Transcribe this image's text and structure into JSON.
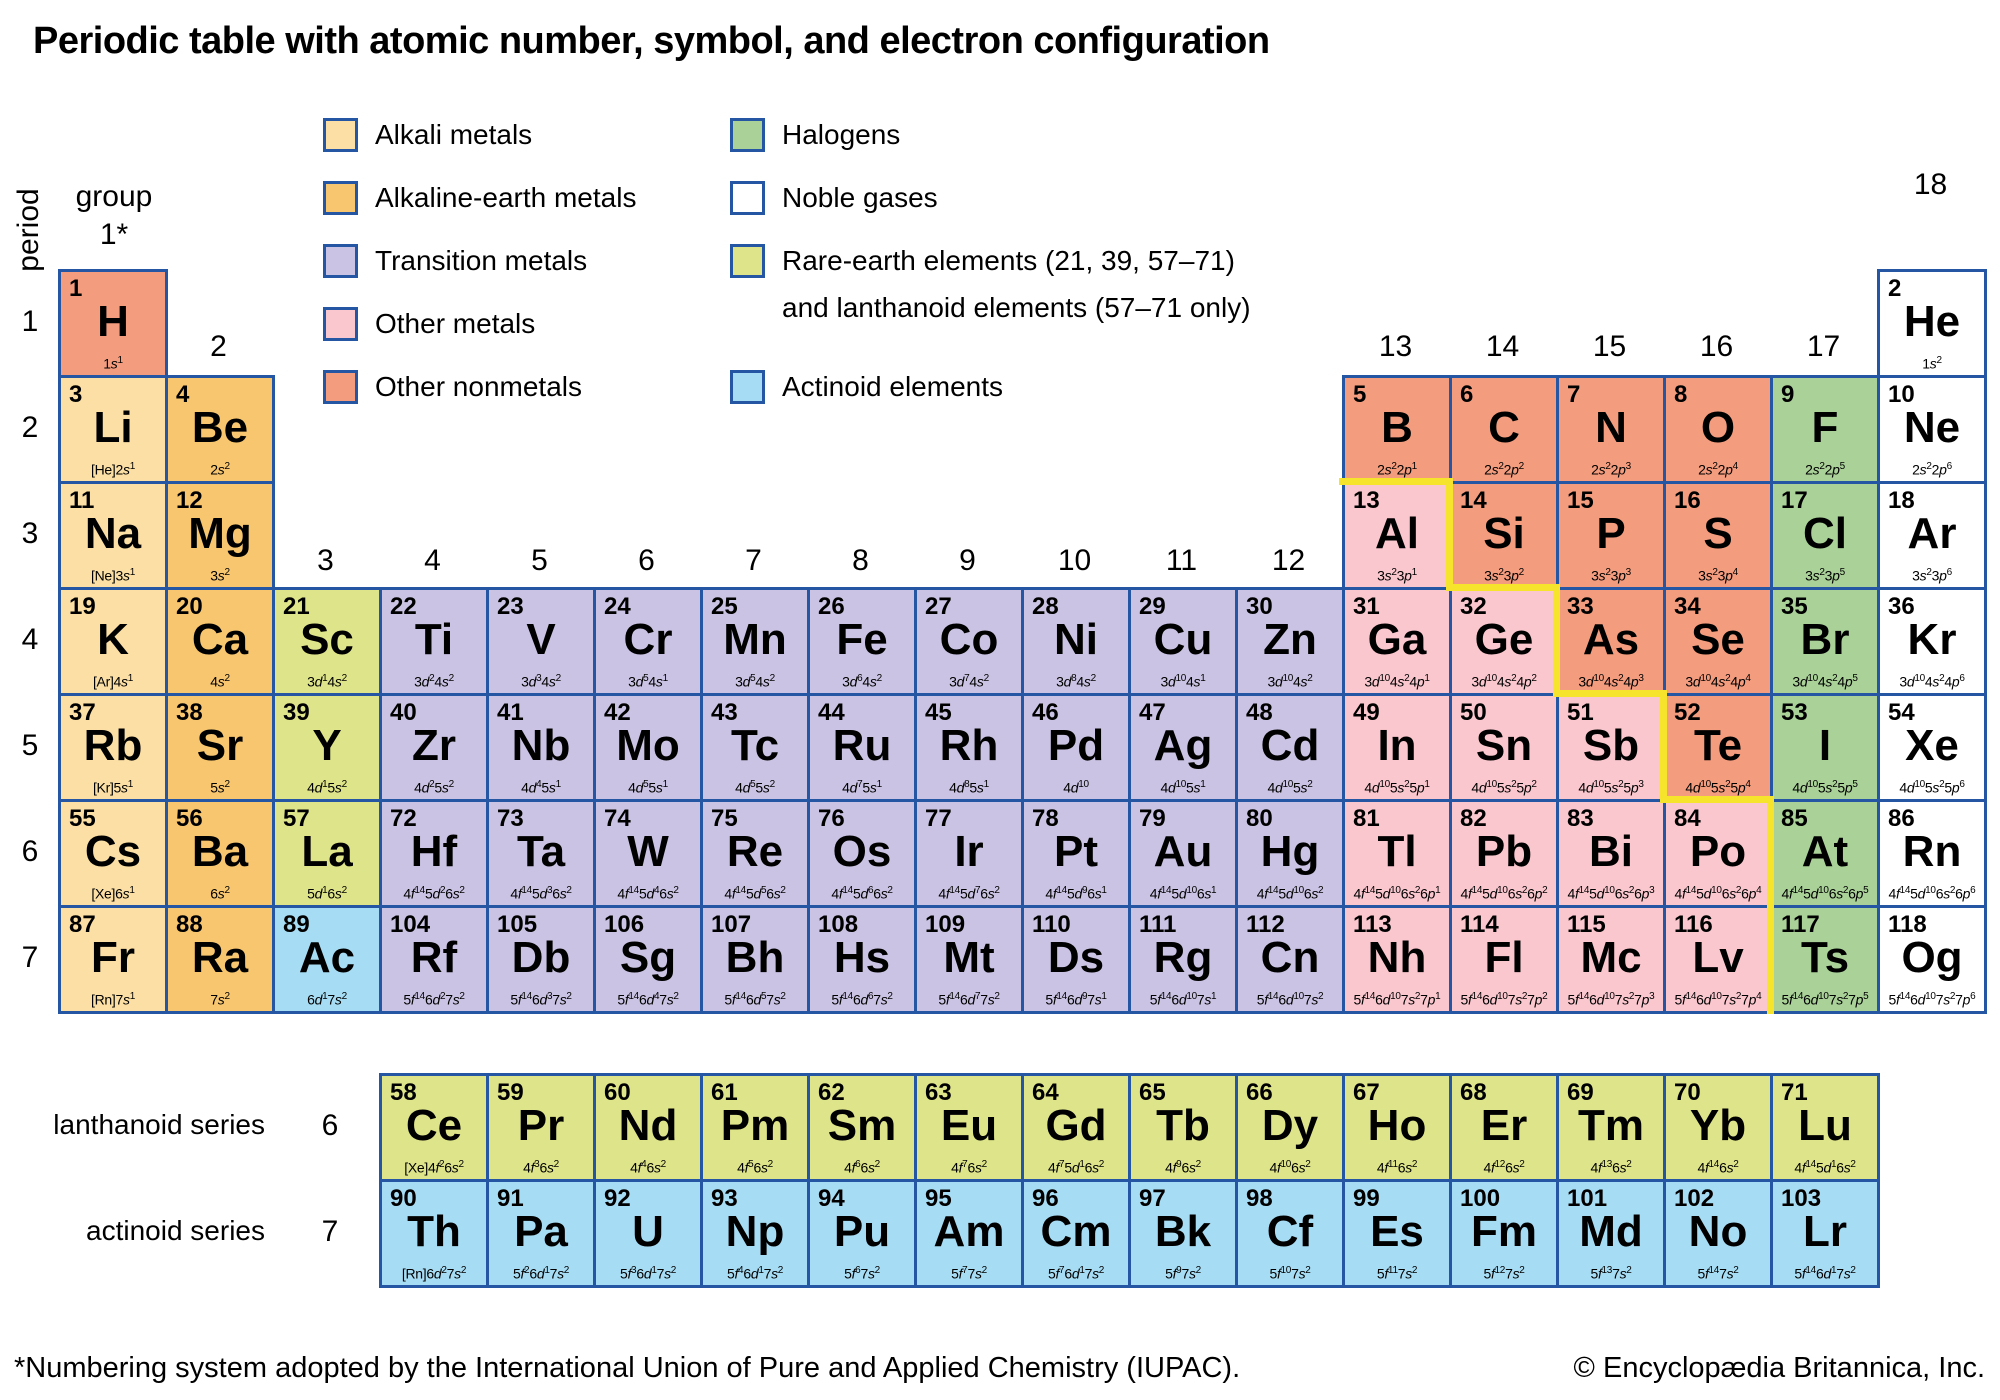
{
  "title": "Periodic table with atomic number, symbol, and electron configuration",
  "legend": {
    "left": [
      {
        "label": "Alkali metals",
        "cat": "alk"
      },
      {
        "label": "Alkaline-earth metals",
        "cat": "ae"
      },
      {
        "label": "Transition metals",
        "cat": "tm"
      },
      {
        "label": "Other metals",
        "cat": "om"
      },
      {
        "label": "Other nonmetals",
        "cat": "nm"
      }
    ],
    "right": [
      {
        "label": "Halogens",
        "cat": "hal"
      },
      {
        "label": "Noble gases",
        "cat": "ng"
      },
      {
        "label": "Rare-earth elements (21, 39, 57–71)",
        "cat": "re"
      },
      {
        "label": "and lanthanoid elements (57–71 only)",
        "cat": null
      },
      {
        "label": "Actinoid elements",
        "cat": "act"
      }
    ]
  },
  "axis": {
    "period_word": "period",
    "group_word": "group",
    "group_first": "1*",
    "period_numbers": [
      "1",
      "2",
      "3",
      "4",
      "5",
      "6",
      "7"
    ],
    "group_numbers": [
      {
        "n": "2",
        "col": 2,
        "band": "mid"
      },
      {
        "n": "3",
        "col": 3,
        "band": "low"
      },
      {
        "n": "4",
        "col": 4,
        "band": "low"
      },
      {
        "n": "5",
        "col": 5,
        "band": "low"
      },
      {
        "n": "6",
        "col": 6,
        "band": "low"
      },
      {
        "n": "7",
        "col": 7,
        "band": "low"
      },
      {
        "n": "8",
        "col": 8,
        "band": "low"
      },
      {
        "n": "9",
        "col": 9,
        "band": "low"
      },
      {
        "n": "10",
        "col": 10,
        "band": "low"
      },
      {
        "n": "11",
        "col": 11,
        "band": "low"
      },
      {
        "n": "12",
        "col": 12,
        "band": "low"
      },
      {
        "n": "13",
        "col": 13,
        "band": "mid"
      },
      {
        "n": "14",
        "col": 14,
        "band": "mid"
      },
      {
        "n": "15",
        "col": 15,
        "band": "mid"
      },
      {
        "n": "16",
        "col": 16,
        "band": "mid"
      },
      {
        "n": "17",
        "col": 17,
        "band": "mid"
      },
      {
        "n": "18",
        "col": 18,
        "band": "top"
      }
    ]
  },
  "series": [
    {
      "label": "lanthanoid series",
      "period": "6"
    },
    {
      "label": "actinoid series",
      "period": "7"
    }
  ],
  "footnote": "*Numbering system adopted by the International Union of Pure and Applied Chemistry (IUPAC).",
  "copyright": "© Encyclopædia Britannica, Inc.",
  "colors": {
    "alk": "#FBDFA4",
    "ae": "#F8C66F",
    "tm": "#CBC3E3",
    "om": "#FAC7CE",
    "nm": "#F49C7E",
    "hal": "#A9D198",
    "ng": "#FFFFFF",
    "re": "#DEE489",
    "act": "#A7DDF4",
    "border": "#2456A4",
    "staircase": "#F6E32B"
  },
  "elements": [
    {
      "n": 1,
      "s": "H",
      "c": "1s^1",
      "k": "nm",
      "r": 1,
      "g": 1
    },
    {
      "n": 2,
      "s": "He",
      "c": "1s^2",
      "k": "ng",
      "r": 1,
      "g": 18
    },
    {
      "n": 3,
      "s": "Li",
      "c": "[He]2s^1",
      "k": "alk",
      "r": 2,
      "g": 1
    },
    {
      "n": 4,
      "s": "Be",
      "c": "2s^2",
      "k": "ae",
      "r": 2,
      "g": 2
    },
    {
      "n": 5,
      "s": "B",
      "c": "2s^2 2p^1",
      "k": "nm",
      "r": 2,
      "g": 13
    },
    {
      "n": 6,
      "s": "C",
      "c": "2s^2 2p^2",
      "k": "nm",
      "r": 2,
      "g": 14
    },
    {
      "n": 7,
      "s": "N",
      "c": "2s^2 2p^3",
      "k": "nm",
      "r": 2,
      "g": 15
    },
    {
      "n": 8,
      "s": "O",
      "c": "2s^2 2p^4",
      "k": "nm",
      "r": 2,
      "g": 16
    },
    {
      "n": 9,
      "s": "F",
      "c": "2s^2 2p^5",
      "k": "hal",
      "r": 2,
      "g": 17
    },
    {
      "n": 10,
      "s": "Ne",
      "c": "2s^2 2p^6",
      "k": "ng",
      "r": 2,
      "g": 18
    },
    {
      "n": 11,
      "s": "Na",
      "c": "[Ne]3s^1",
      "k": "alk",
      "r": 3,
      "g": 1
    },
    {
      "n": 12,
      "s": "Mg",
      "c": "3s^2",
      "k": "ae",
      "r": 3,
      "g": 2
    },
    {
      "n": 13,
      "s": "Al",
      "c": "3s^2 3p^1",
      "k": "om",
      "r": 3,
      "g": 13
    },
    {
      "n": 14,
      "s": "Si",
      "c": "3s^2 3p^2",
      "k": "nm",
      "r": 3,
      "g": 14
    },
    {
      "n": 15,
      "s": "P",
      "c": "3s^2 3p^3",
      "k": "nm",
      "r": 3,
      "g": 15
    },
    {
      "n": 16,
      "s": "S",
      "c": "3s^2 3p^4",
      "k": "nm",
      "r": 3,
      "g": 16
    },
    {
      "n": 17,
      "s": "Cl",
      "c": "3s^2 3p^5",
      "k": "hal",
      "r": 3,
      "g": 17
    },
    {
      "n": 18,
      "s": "Ar",
      "c": "3s^2 3p^6",
      "k": "ng",
      "r": 3,
      "g": 18
    },
    {
      "n": 19,
      "s": "K",
      "c": "[Ar]4s^1",
      "k": "alk",
      "r": 4,
      "g": 1
    },
    {
      "n": 20,
      "s": "Ca",
      "c": "4s^2",
      "k": "ae",
      "r": 4,
      "g": 2
    },
    {
      "n": 21,
      "s": "Sc",
      "c": "3d^1 4s^2",
      "k": "re",
      "r": 4,
      "g": 3
    },
    {
      "n": 22,
      "s": "Ti",
      "c": "3d^2 4s^2",
      "k": "tm",
      "r": 4,
      "g": 4
    },
    {
      "n": 23,
      "s": "V",
      "c": "3d^3 4s^2",
      "k": "tm",
      "r": 4,
      "g": 5
    },
    {
      "n": 24,
      "s": "Cr",
      "c": "3d^5 4s^1",
      "k": "tm",
      "r": 4,
      "g": 6
    },
    {
      "n": 25,
      "s": "Mn",
      "c": "3d^5 4s^2",
      "k": "tm",
      "r": 4,
      "g": 7
    },
    {
      "n": 26,
      "s": "Fe",
      "c": "3d^6 4s^2",
      "k": "tm",
      "r": 4,
      "g": 8
    },
    {
      "n": 27,
      "s": "Co",
      "c": "3d^7 4s^2",
      "k": "tm",
      "r": 4,
      "g": 9
    },
    {
      "n": 28,
      "s": "Ni",
      "c": "3d^8 4s^2",
      "k": "tm",
      "r": 4,
      "g": 10
    },
    {
      "n": 29,
      "s": "Cu",
      "c": "3d^10 4s^1",
      "k": "tm",
      "r": 4,
      "g": 11
    },
    {
      "n": 30,
      "s": "Zn",
      "c": "3d^10 4s^2",
      "k": "tm",
      "r": 4,
      "g": 12
    },
    {
      "n": 31,
      "s": "Ga",
      "c": "3d^10 4s^2 4p^1",
      "k": "om",
      "r": 4,
      "g": 13
    },
    {
      "n": 32,
      "s": "Ge",
      "c": "3d^10 4s^2 4p^2",
      "k": "om",
      "r": 4,
      "g": 14
    },
    {
      "n": 33,
      "s": "As",
      "c": "3d^10 4s^2 4p^3",
      "k": "nm",
      "r": 4,
      "g": 15
    },
    {
      "n": 34,
      "s": "Se",
      "c": "3d^10 4s^2 4p^4",
      "k": "nm",
      "r": 4,
      "g": 16
    },
    {
      "n": 35,
      "s": "Br",
      "c": "3d^10 4s^2 4p^5",
      "k": "hal",
      "r": 4,
      "g": 17
    },
    {
      "n": 36,
      "s": "Kr",
      "c": "3d^10 4s^2 4p^6",
      "k": "ng",
      "r": 4,
      "g": 18
    },
    {
      "n": 37,
      "s": "Rb",
      "c": "[Kr]5s^1",
      "k": "alk",
      "r": 5,
      "g": 1
    },
    {
      "n": 38,
      "s": "Sr",
      "c": "5s^2",
      "k": "ae",
      "r": 5,
      "g": 2
    },
    {
      "n": 39,
      "s": "Y",
      "c": "4d^1 5s^2",
      "k": "re",
      "r": 5,
      "g": 3
    },
    {
      "n": 40,
      "s": "Zr",
      "c": "4d^2 5s^2",
      "k": "tm",
      "r": 5,
      "g": 4
    },
    {
      "n": 41,
      "s": "Nb",
      "c": "4d^4 5s^1",
      "k": "tm",
      "r": 5,
      "g": 5
    },
    {
      "n": 42,
      "s": "Mo",
      "c": "4d^5 5s^1",
      "k": "tm",
      "r": 5,
      "g": 6
    },
    {
      "n": 43,
      "s": "Tc",
      "c": "4d^5 5s^2",
      "k": "tm",
      "r": 5,
      "g": 7
    },
    {
      "n": 44,
      "s": "Ru",
      "c": "4d^7 5s^1",
      "k": "tm",
      "r": 5,
      "g": 8
    },
    {
      "n": 45,
      "s": "Rh",
      "c": "4d^8 5s^1",
      "k": "tm",
      "r": 5,
      "g": 9
    },
    {
      "n": 46,
      "s": "Pd",
      "c": "4d^10",
      "k": "tm",
      "r": 5,
      "g": 10
    },
    {
      "n": 47,
      "s": "Ag",
      "c": "4d^10 5s^1",
      "k": "tm",
      "r": 5,
      "g": 11
    },
    {
      "n": 48,
      "s": "Cd",
      "c": "4d^10 5s^2",
      "k": "tm",
      "r": 5,
      "g": 12
    },
    {
      "n": 49,
      "s": "In",
      "c": "4d^10 5s^2 5p^1",
      "k": "om",
      "r": 5,
      "g": 13
    },
    {
      "n": 50,
      "s": "Sn",
      "c": "4d^10 5s^2 5p^2",
      "k": "om",
      "r": 5,
      "g": 14
    },
    {
      "n": 51,
      "s": "Sb",
      "c": "4d^10 5s^2 5p^3",
      "k": "om",
      "r": 5,
      "g": 15
    },
    {
      "n": 52,
      "s": "Te",
      "c": "4d^10 5s^2 5p^4",
      "k": "nm",
      "r": 5,
      "g": 16
    },
    {
      "n": 53,
      "s": "I",
      "c": "4d^10 5s^2 5p^5",
      "k": "hal",
      "r": 5,
      "g": 17
    },
    {
      "n": 54,
      "s": "Xe",
      "c": "4d^10 5s^2 5p^6",
      "k": "ng",
      "r": 5,
      "g": 18
    },
    {
      "n": 55,
      "s": "Cs",
      "c": "[Xe]6s^1",
      "k": "alk",
      "r": 6,
      "g": 1
    },
    {
      "n": 56,
      "s": "Ba",
      "c": "6s^2",
      "k": "ae",
      "r": 6,
      "g": 2
    },
    {
      "n": 57,
      "s": "La",
      "c": "5d^1 6s^2",
      "k": "re",
      "r": 6,
      "g": 3
    },
    {
      "n": 72,
      "s": "Hf",
      "c": "4f^14 5d^2 6s^2",
      "k": "tm",
      "r": 6,
      "g": 4
    },
    {
      "n": 73,
      "s": "Ta",
      "c": "4f^14 5d^3 6s^2",
      "k": "tm",
      "r": 6,
      "g": 5
    },
    {
      "n": 74,
      "s": "W",
      "c": "4f^14 5d^4 6s^2",
      "k": "tm",
      "r": 6,
      "g": 6
    },
    {
      "n": 75,
      "s": "Re",
      "c": "4f^14 5d^5 6s^2",
      "k": "tm",
      "r": 6,
      "g": 7
    },
    {
      "n": 76,
      "s": "Os",
      "c": "4f^14 5d^6 6s^2",
      "k": "tm",
      "r": 6,
      "g": 8
    },
    {
      "n": 77,
      "s": "Ir",
      "c": "4f^14 5d^7 6s^2",
      "k": "tm",
      "r": 6,
      "g": 9
    },
    {
      "n": 78,
      "s": "Pt",
      "c": "4f^14 5d^9 6s^1",
      "k": "tm",
      "r": 6,
      "g": 10
    },
    {
      "n": 79,
      "s": "Au",
      "c": "4f^14 5d^10 6s^1",
      "k": "tm",
      "r": 6,
      "g": 11
    },
    {
      "n": 80,
      "s": "Hg",
      "c": "4f^14 5d^10 6s^2",
      "k": "tm",
      "r": 6,
      "g": 12
    },
    {
      "n": 81,
      "s": "Tl",
      "c": "4f^14 5d^10 6s^2 6p^1",
      "k": "om",
      "r": 6,
      "g": 13
    },
    {
      "n": 82,
      "s": "Pb",
      "c": "4f^14 5d^10 6s^2 6p^2",
      "k": "om",
      "r": 6,
      "g": 14
    },
    {
      "n": 83,
      "s": "Bi",
      "c": "4f^14 5d^10 6s^2 6p^3",
      "k": "om",
      "r": 6,
      "g": 15
    },
    {
      "n": 84,
      "s": "Po",
      "c": "4f^14 5d^10 6s^2 6p^4",
      "k": "om",
      "r": 6,
      "g": 16
    },
    {
      "n": 85,
      "s": "At",
      "c": "4f^14 5d^10 6s^2 6p^5",
      "k": "hal",
      "r": 6,
      "g": 17
    },
    {
      "n": 86,
      "s": "Rn",
      "c": "4f^14 5d^10 6s^2 6p^6",
      "k": "ng",
      "r": 6,
      "g": 18
    },
    {
      "n": 87,
      "s": "Fr",
      "c": "[Rn]7s^1",
      "k": "alk",
      "r": 7,
      "g": 1
    },
    {
      "n": 88,
      "s": "Ra",
      "c": "7s^2",
      "k": "ae",
      "r": 7,
      "g": 2
    },
    {
      "n": 89,
      "s": "Ac",
      "c": "6d^1 7s^2",
      "k": "act",
      "r": 7,
      "g": 3
    },
    {
      "n": 104,
      "s": "Rf",
      "c": "5f^14 6d^2 7s^2",
      "k": "tm",
      "r": 7,
      "g": 4
    },
    {
      "n": 105,
      "s": "Db",
      "c": "5f^14 6d^3 7s^2",
      "k": "tm",
      "r": 7,
      "g": 5
    },
    {
      "n": 106,
      "s": "Sg",
      "c": "5f^14 6d^4 7s^2",
      "k": "tm",
      "r": 7,
      "g": 6
    },
    {
      "n": 107,
      "s": "Bh",
      "c": "5f^14 6d^5 7s^2",
      "k": "tm",
      "r": 7,
      "g": 7
    },
    {
      "n": 108,
      "s": "Hs",
      "c": "5f^14 6d^6 7s^2",
      "k": "tm",
      "r": 7,
      "g": 8
    },
    {
      "n": 109,
      "s": "Mt",
      "c": "5f^14 6d^7 7s^2",
      "k": "tm",
      "r": 7,
      "g": 9
    },
    {
      "n": 110,
      "s": "Ds",
      "c": "5f^14 6d^9 7s^1",
      "k": "tm",
      "r": 7,
      "g": 10
    },
    {
      "n": 111,
      "s": "Rg",
      "c": "5f^14 6d^10 7s^1",
      "k": "tm",
      "r": 7,
      "g": 11
    },
    {
      "n": 112,
      "s": "Cn",
      "c": "5f^14 6d^10 7s^2",
      "k": "tm",
      "r": 7,
      "g": 12
    },
    {
      "n": 113,
      "s": "Nh",
      "c": "5f^14 6d^10 7s^2 7p^1",
      "k": "om",
      "r": 7,
      "g": 13
    },
    {
      "n": 114,
      "s": "Fl",
      "c": "5f^14 6d^10 7s^2 7p^2",
      "k": "om",
      "r": 7,
      "g": 14
    },
    {
      "n": 115,
      "s": "Mc",
      "c": "5f^14 6d^10 7s^2 7p^3",
      "k": "om",
      "r": 7,
      "g": 15
    },
    {
      "n": 116,
      "s": "Lv",
      "c": "5f^14 6d^10 7s^2 7p^4",
      "k": "om",
      "r": 7,
      "g": 16
    },
    {
      "n": 117,
      "s": "Ts",
      "c": "5f^14 6d^10 7s^2 7p^5",
      "k": "hal",
      "r": 7,
      "g": 17
    },
    {
      "n": 118,
      "s": "Og",
      "c": "5f^14 6d^10 7s^2 7p^6",
      "k": "ng",
      "r": 7,
      "g": 18
    },
    {
      "n": 58,
      "s": "Ce",
      "c": "[Xe]4f^2 6s^2",
      "k": "re",
      "r": "L",
      "g": 4
    },
    {
      "n": 59,
      "s": "Pr",
      "c": "4f^3 6s^2",
      "k": "re",
      "r": "L",
      "g": 5
    },
    {
      "n": 60,
      "s": "Nd",
      "c": "4f^4 6s^2",
      "k": "re",
      "r": "L",
      "g": 6
    },
    {
      "n": 61,
      "s": "Pm",
      "c": "4f^5 6s^2",
      "k": "re",
      "r": "L",
      "g": 7
    },
    {
      "n": 62,
      "s": "Sm",
      "c": "4f^6 6s^2",
      "k": "re",
      "r": "L",
      "g": 8
    },
    {
      "n": 63,
      "s": "Eu",
      "c": "4f^7 6s^2",
      "k": "re",
      "r": "L",
      "g": 9
    },
    {
      "n": 64,
      "s": "Gd",
      "c": "4f^7 5d^1 6s^2",
      "k": "re",
      "r": "L",
      "g": 10
    },
    {
      "n": 65,
      "s": "Tb",
      "c": "4f^9 6s^2",
      "k": "re",
      "r": "L",
      "g": 11
    },
    {
      "n": 66,
      "s": "Dy",
      "c": "4f^10 6s^2",
      "k": "re",
      "r": "L",
      "g": 12
    },
    {
      "n": 67,
      "s": "Ho",
      "c": "4f^11 6s^2",
      "k": "re",
      "r": "L",
      "g": 13
    },
    {
      "n": 68,
      "s": "Er",
      "c": "4f^12 6s^2",
      "k": "re",
      "r": "L",
      "g": 14
    },
    {
      "n": 69,
      "s": "Tm",
      "c": "4f^13 6s^2",
      "k": "re",
      "r": "L",
      "g": 15
    },
    {
      "n": 70,
      "s": "Yb",
      "c": "4f^14 6s^2",
      "k": "re",
      "r": "L",
      "g": 16
    },
    {
      "n": 71,
      "s": "Lu",
      "c": "4f^14 5d^1 6s^2",
      "k": "re",
      "r": "L",
      "g": 17
    },
    {
      "n": 90,
      "s": "Th",
      "c": "[Rn]6d^2 7s^2",
      "k": "act",
      "r": "A",
      "g": 4
    },
    {
      "n": 91,
      "s": "Pa",
      "c": "5f^2 6d^1 7s^2",
      "k": "act",
      "r": "A",
      "g": 5
    },
    {
      "n": 92,
      "s": "U",
      "c": "5f^3 6d^1 7s^2",
      "k": "act",
      "r": "A",
      "g": 6
    },
    {
      "n": 93,
      "s": "Np",
      "c": "5f^4 6d^1 7s^2",
      "k": "act",
      "r": "A",
      "g": 7
    },
    {
      "n": 94,
      "s": "Pu",
      "c": "5f^6 7s^2",
      "k": "act",
      "r": "A",
      "g": 8
    },
    {
      "n": 95,
      "s": "Am",
      "c": "5f^7 7s^2",
      "k": "act",
      "r": "A",
      "g": 9
    },
    {
      "n": 96,
      "s": "Cm",
      "c": "5f^7 6d^1 7s^2",
      "k": "act",
      "r": "A",
      "g": 10
    },
    {
      "n": 97,
      "s": "Bk",
      "c": "5f^9 7s^2",
      "k": "act",
      "r": "A",
      "g": 11
    },
    {
      "n": 98,
      "s": "Cf",
      "c": "5f^10 7s^2",
      "k": "act",
      "r": "A",
      "g": 12
    },
    {
      "n": 99,
      "s": "Es",
      "c": "5f^11 7s^2",
      "k": "act",
      "r": "A",
      "g": 13
    },
    {
      "n": 100,
      "s": "Fm",
      "c": "5f^12 7s^2",
      "k": "act",
      "r": "A",
      "g": 14
    },
    {
      "n": 101,
      "s": "Md",
      "c": "5f^13 7s^2",
      "k": "act",
      "r": "A",
      "g": 15
    },
    {
      "n": 102,
      "s": "No",
      "c": "5f^14 7s^2",
      "k": "act",
      "r": "A",
      "g": 16
    },
    {
      "n": 103,
      "s": "Lr",
      "c": "5f^14 6d^1 7s^2",
      "k": "act",
      "r": "A",
      "g": 17
    }
  ]
}
